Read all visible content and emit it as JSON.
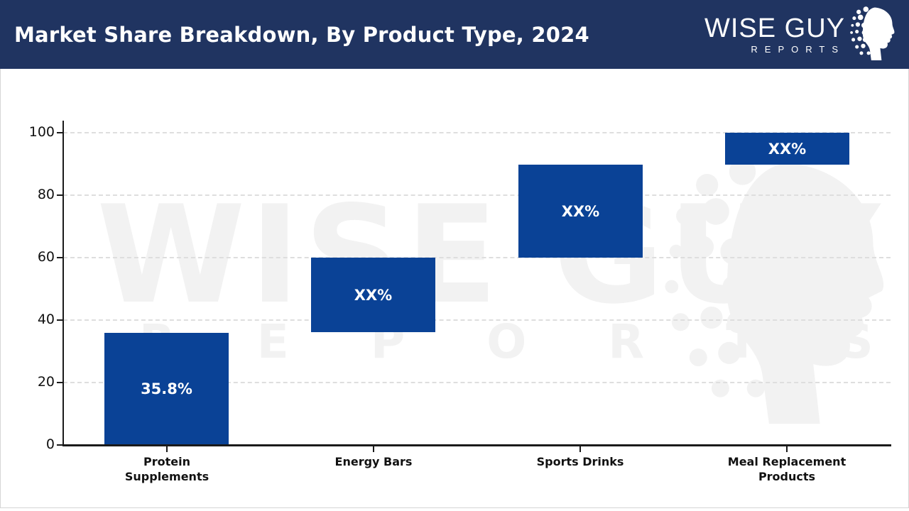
{
  "header": {
    "title": "Market Share Breakdown, By Product Type, 2024",
    "logo": {
      "line1": "WISE GUY",
      "line2": "REPORTS"
    }
  },
  "watermark": {
    "line1": "WISE GUY",
    "line2": "R E P O R T S"
  },
  "chart_data": {
    "type": "bar",
    "subtype": "floating-waterfall",
    "title": "Market Share Breakdown, By Product Type, 2024",
    "categories": [
      {
        "label": "Protein Supplements",
        "lines": [
          "Protein",
          "Supplements"
        ]
      },
      {
        "label": "Energy Bars",
        "lines": [
          "Energy Bars"
        ]
      },
      {
        "label": "Sports Drinks",
        "lines": [
          "Sports Drinks"
        ]
      },
      {
        "label": "Meal Replacement Products",
        "lines": [
          "Meal Replacement",
          "Products"
        ]
      }
    ],
    "series": [
      {
        "name": "Market Share (%)",
        "segments": [
          {
            "category": "Protein Supplements",
            "start": 0,
            "end": 35.8,
            "label": "35.8%"
          },
          {
            "category": "Energy Bars",
            "start": 36.1,
            "end": 60,
            "label": "XX%"
          },
          {
            "category": "Sports Drinks",
            "start": 60,
            "end": 89.8,
            "label": "XX%"
          },
          {
            "category": "Meal Replacement Products",
            "start": 89.8,
            "end": 100,
            "label": "XX%"
          }
        ]
      }
    ],
    "yticks": [
      0,
      20,
      40,
      60,
      80,
      100
    ],
    "ylim": [
      0,
      103.8
    ],
    "xlabel": "",
    "ylabel": "",
    "grid": "horizontal-dashed",
    "legend": "none",
    "colors": {
      "bar": "#0a4296",
      "bar_label": "#ffffff",
      "grid": "#dedede",
      "axis": "#1a1a1a",
      "header_bg": "#203461",
      "watermark": "#f2f2f2"
    }
  }
}
